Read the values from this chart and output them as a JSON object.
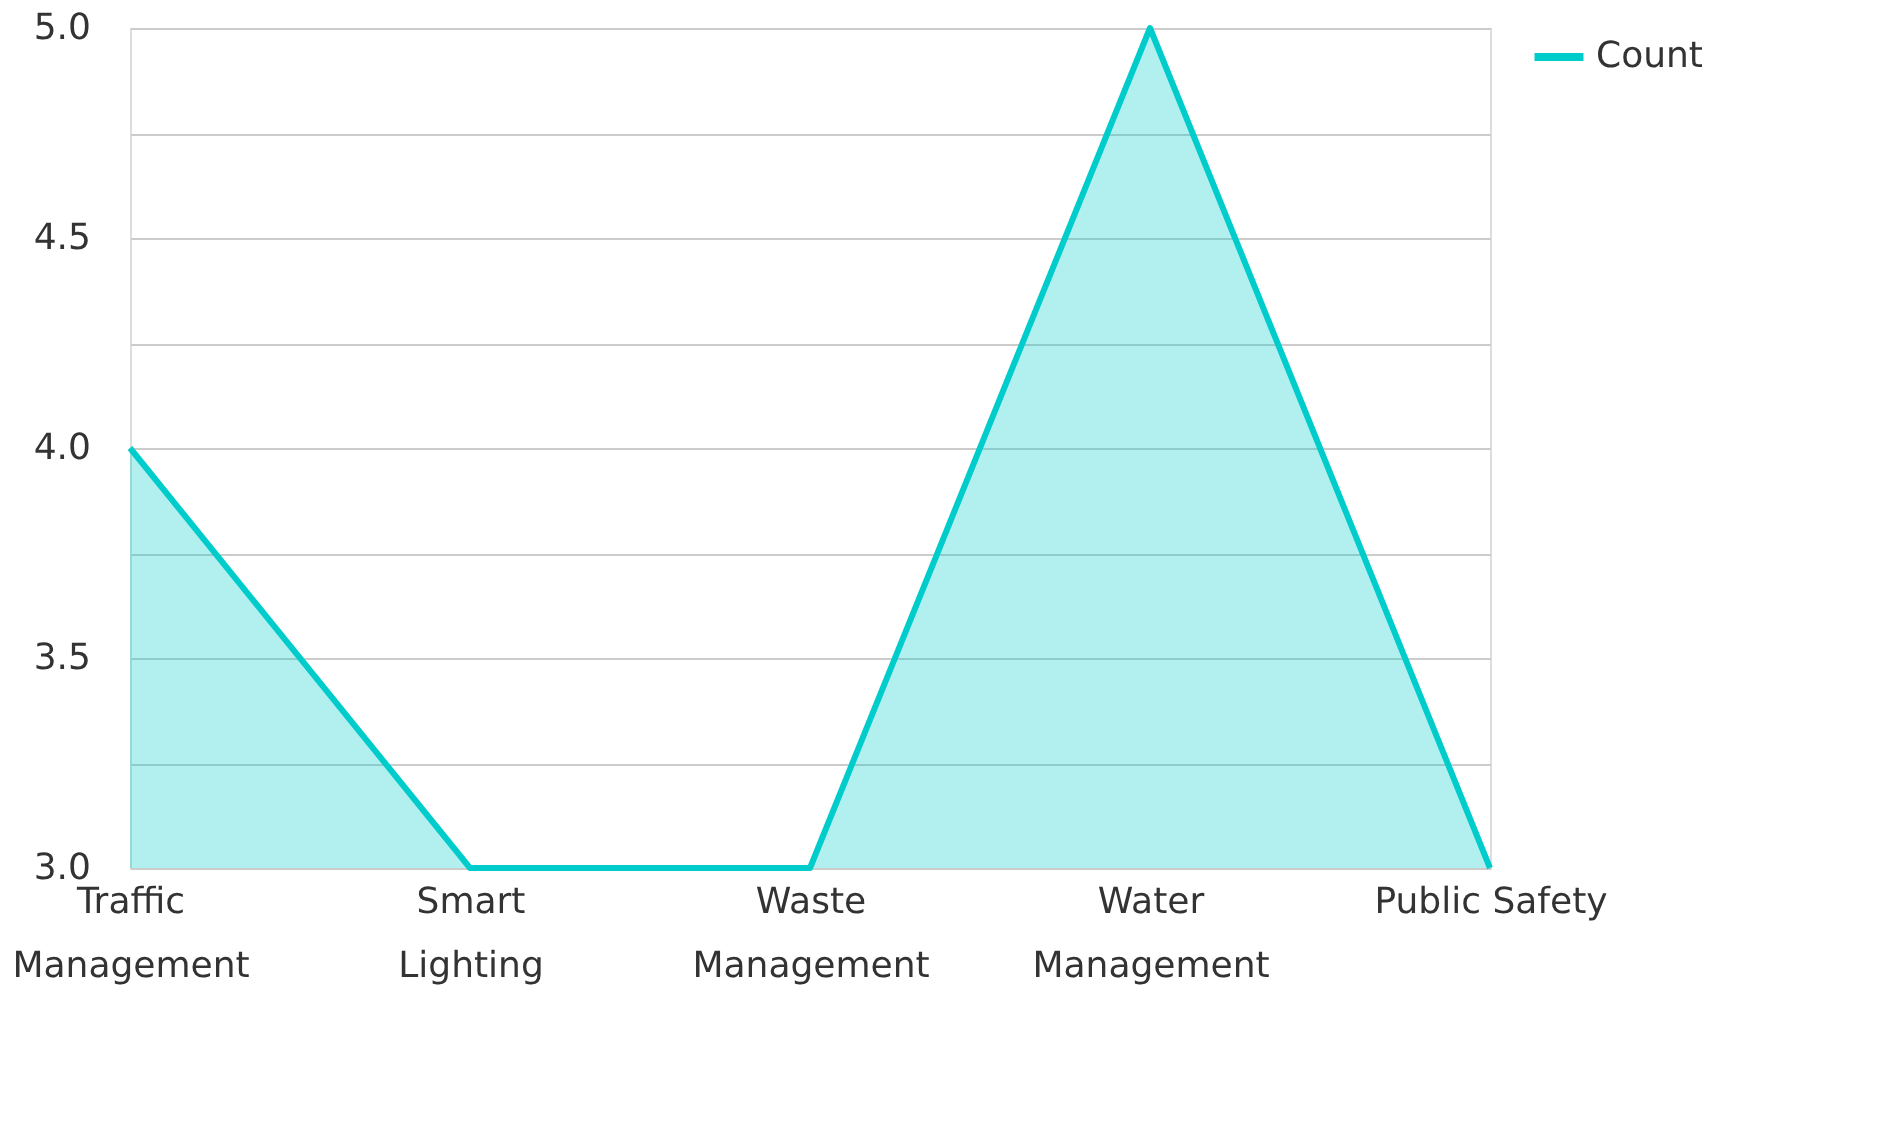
{
  "chart_data": {
    "type": "area",
    "categories": [
      "Traffic Management",
      "Smart Lighting",
      "Waste Management",
      "Water Management",
      "Public Safety"
    ],
    "series": [
      {
        "name": "Count",
        "color": "#00cccc",
        "values": [
          4,
          3,
          3,
          5,
          3
        ]
      }
    ],
    "ylim": [
      3,
      5
    ],
    "yticks": [
      {
        "value": 3,
        "label": "3.0"
      },
      {
        "value": 3.25,
        "label": null
      },
      {
        "value": 3.5,
        "label": "3.5"
      },
      {
        "value": 3.75,
        "label": null
      },
      {
        "value": 4,
        "label": "4.0"
      },
      {
        "value": 4.25,
        "label": null
      },
      {
        "value": 4.5,
        "label": "4.5"
      },
      {
        "value": 4.75,
        "label": null
      },
      {
        "value": 5,
        "label": "5.0"
      }
    ],
    "grid": "y",
    "legend": "top right"
  }
}
